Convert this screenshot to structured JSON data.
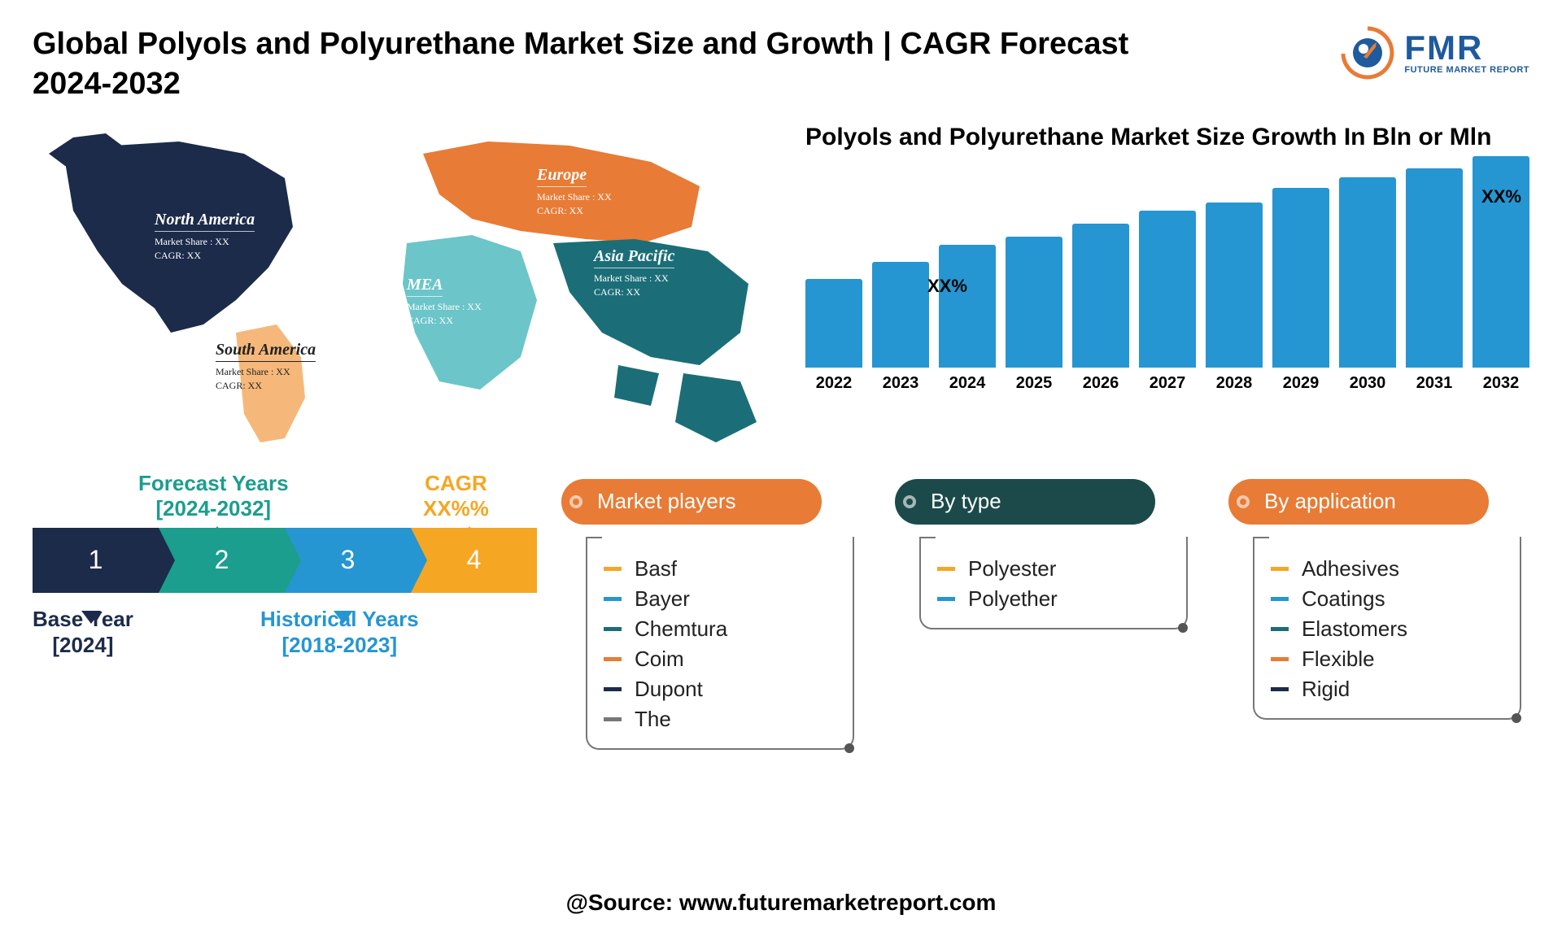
{
  "title": "Global Polyols and Polyurethane  Market Size and Growth | CAGR Forecast 2024-2032",
  "logo": {
    "fmr": "FMR",
    "sub": "FUTURE MARKET REPORT",
    "icon_colors": {
      "outer": "#e87b35",
      "inner": "#1e5a9e"
    }
  },
  "map": {
    "regions": [
      {
        "name": "North America",
        "share": "Market Share : XX",
        "cagr": "CAGR: XX",
        "color": "#1c2b4a"
      },
      {
        "name": "South America",
        "share": "Market Share : XX",
        "cagr": "CAGR: XX",
        "color": "#f5b87a"
      },
      {
        "name": "Europe",
        "share": "Market Share : XX",
        "cagr": "CAGR: XX",
        "color": "#e87b35"
      },
      {
        "name": "MEA",
        "share": "Market Share : XX",
        "cagr": "CAGR: XX",
        "color": "#6bc5c9"
      },
      {
        "name": "Asia Pacific",
        "share": "Market Share : XX",
        "cagr": "CAGR: XX",
        "color": "#1b6e78"
      }
    ]
  },
  "chart": {
    "type": "bar",
    "title": "Polyols and Polyurethane Market Size Growth In Bln or Mln",
    "label_start": "XX%",
    "label_end": "XX%",
    "bar_color": "#2596d1",
    "years": [
      "2022",
      "2023",
      "2024",
      "2025",
      "2026",
      "2027",
      "2028",
      "2029",
      "2030",
      "2031",
      "2032"
    ],
    "heights_pct": [
      42,
      50,
      58,
      62,
      68,
      74,
      78,
      85,
      90,
      94,
      100
    ],
    "label_fontsize": 20
  },
  "timeline": {
    "blocks": [
      {
        "num": "1",
        "color": "#1c2b4a"
      },
      {
        "num": "2",
        "color": "#1b9e8e"
      },
      {
        "num": "3",
        "color": "#2596d1"
      },
      {
        "num": "4",
        "color": "#f5a623"
      }
    ],
    "labels": {
      "forecast": {
        "line1": "Forecast Years",
        "line2": "[2024-2032]",
        "color": "#1b9e8e"
      },
      "cagr": {
        "line1": "CAGR",
        "line2": "XX%%",
        "color": "#f5a623"
      },
      "base": {
        "line1": "Base Year",
        "line2": "[2024]",
        "color": "#1c2b4a"
      },
      "historical": {
        "line1": "Historical Years",
        "line2": "[2018-2023]",
        "color": "#2596d1"
      }
    }
  },
  "categories": [
    {
      "title": "Market players",
      "pill_color": "#e87b35",
      "items": [
        {
          "label": "Basf",
          "tick": "#f5a623"
        },
        {
          "label": "Bayer",
          "tick": "#2596d1"
        },
        {
          "label": "Chemtura",
          "tick": "#1b6e78"
        },
        {
          "label": "Coim",
          "tick": "#e87b35"
        },
        {
          "label": "Dupont",
          "tick": "#1c2b4a"
        },
        {
          "label": "The",
          "tick": "#777777"
        }
      ]
    },
    {
      "title": "By type",
      "pill_color": "#1c4a4a",
      "items": [
        {
          "label": "Polyester",
          "tick": "#f5a623"
        },
        {
          "label": "Polyether",
          "tick": "#2596d1"
        }
      ]
    },
    {
      "title": "By application",
      "pill_color": "#e87b35",
      "items": [
        {
          "label": "Adhesives",
          "tick": "#f5a623"
        },
        {
          "label": "Coatings",
          "tick": "#2596d1"
        },
        {
          "label": "Elastomers",
          "tick": "#1b6e78"
        },
        {
          "label": "Flexible",
          "tick": "#e87b35"
        },
        {
          "label": "Rigid",
          "tick": "#1c2b4a"
        }
      ]
    }
  ],
  "source": "@Source: www.futuremarketreport.com"
}
